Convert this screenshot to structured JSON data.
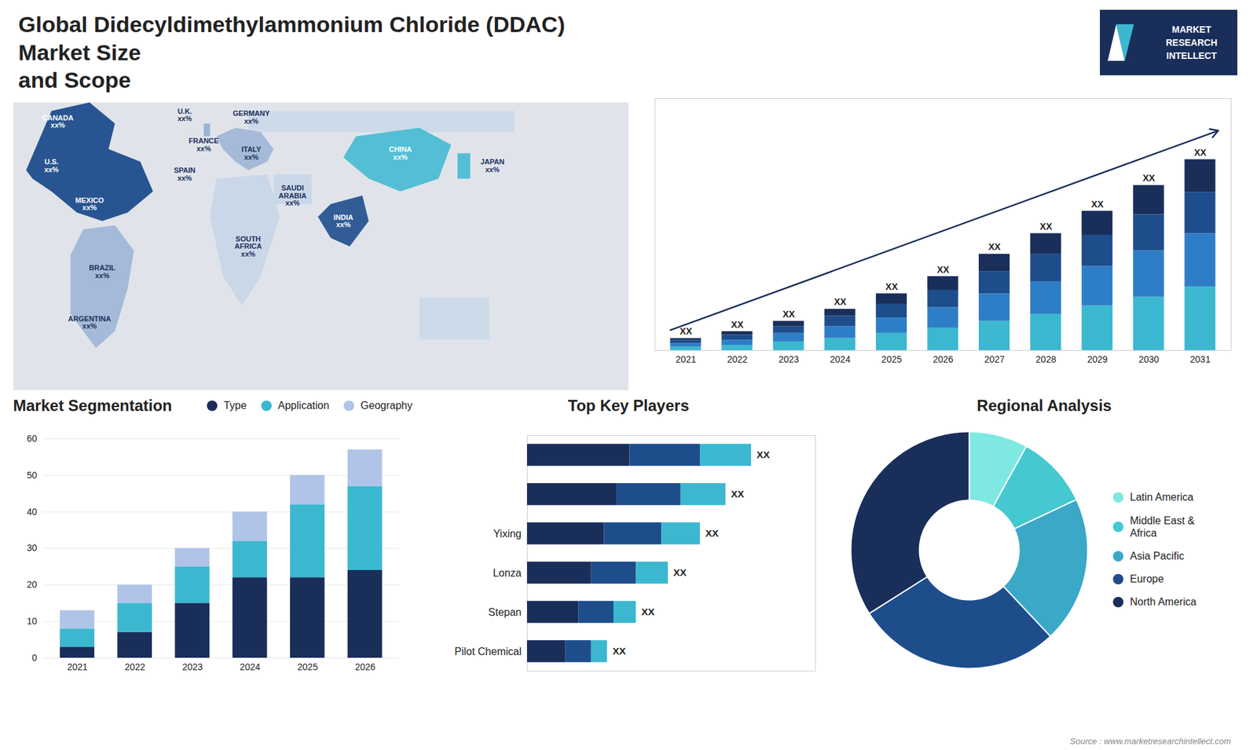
{
  "annotations": [
    "MARKET\nRESEARCH\nINTELLECT",
    "Source : www.marketresearchintellect.com"
  ],
  "chart_data": [
    {
      "type": "map",
      "title": "Global Didecyldimethylammonium Chloride (DDAC) Market Size\nand Scope",
      "annotations": [
        "CANADA\nxx%",
        "U.S.\nxx%",
        "MEXICO\nxx%",
        "BRAZIL\nxx%",
        "ARGENTINA\nxx%",
        "U.K.\nxx%",
        "FRANCE\nxx%",
        "SPAIN\nxx%",
        "GERMANY\nxx%",
        "ITALY\nxx%",
        "SOUTH\nAFRICA\nxx%",
        "SAUDI\nARABIA\nxx%",
        "CHINA\nxx%",
        "INDIA\nxx%",
        "JAPAN\nxx%"
      ]
    },
    {
      "type": "bar",
      "stacked": true,
      "categories": [
        2021,
        2022,
        2023,
        2024,
        2025,
        2026,
        2027,
        2028,
        2029,
        2030,
        2031
      ],
      "series": [
        {
          "color": "#3bb8d0",
          "values": [
            2,
            3,
            5,
            7,
            10,
            13,
            17,
            21,
            26,
            31,
            37
          ]
        },
        {
          "color": "#2e7ec7",
          "values": [
            2,
            3,
            5,
            7,
            9,
            12,
            16,
            19,
            23,
            27,
            31
          ]
        },
        {
          "color": "#1e4d8c",
          "values": [
            2,
            3,
            4,
            6,
            8,
            10,
            13,
            16,
            18,
            21,
            24
          ]
        },
        {
          "color": "#1a2e5a",
          "values": [
            1,
            2,
            3,
            4,
            6,
            8,
            10,
            12,
            14,
            17,
            19
          ]
        }
      ],
      "ylim": [
        0,
        146.52
      ],
      "tick_labels": "x",
      "annotations": [
        "XX",
        "XX",
        "XX",
        "XX",
        "XX",
        "XX",
        "XX",
        "XX",
        "XX",
        "XX",
        "XX"
      ]
    },
    {
      "type": "bar",
      "title": "Market Segmentation",
      "stacked": true,
      "categories": [
        2021,
        2022,
        2023,
        2024,
        2025,
        2026
      ],
      "series": [
        {
          "name": "Type",
          "color": "#1a2e5a",
          "values": [
            3,
            7,
            15,
            22,
            22,
            24
          ]
        },
        {
          "name": "Application",
          "color": "#3bb8d0",
          "values": [
            5,
            8,
            10,
            10,
            20,
            23
          ]
        },
        {
          "name": "Geography",
          "color": "#b0c4e8",
          "values": [
            5,
            5,
            5,
            8,
            8,
            10
          ]
        }
      ],
      "ylim": [
        0,
        60
      ],
      "yticks": [
        0,
        10,
        20,
        30,
        40,
        50,
        60
      ],
      "grid": true,
      "legend": "upper right"
    },
    {
      "type": "bar",
      "title": "Top Key Players",
      "orientation": "horizontal",
      "stacked": true,
      "categories": [
        null,
        null,
        "Yixing",
        "Lonza",
        "Stepan",
        "Pilot Chemical"
      ],
      "series": [
        {
          "color": "#1a2e5a",
          "values": [
            32,
            28,
            24,
            20,
            16,
            12
          ]
        },
        {
          "color": "#1e4d8c",
          "values": [
            22,
            20,
            18,
            14,
            11,
            8
          ]
        },
        {
          "color": "#3bb8d0",
          "values": [
            16,
            14,
            12,
            10,
            7,
            5
          ]
        }
      ],
      "xlim": [
        0,
        90
      ],
      "tick_labels": "y",
      "annotations": [
        "XX",
        "XX",
        "XX",
        "XX",
        "XX",
        "XX"
      ]
    },
    {
      "type": "pie",
      "title": "Regional Analysis",
      "categories": [
        "Latin America",
        "Middle East &\nAfrica",
        "Asia Pacific",
        "Europe",
        "North America"
      ],
      "values": [
        8,
        10,
        20,
        28,
        34
      ],
      "colors": [
        "#7fe8e0",
        "#45c8d0",
        "#3ba8c8",
        "#1e4d8c",
        "#1a2e5a"
      ],
      "legend": "right"
    }
  ]
}
